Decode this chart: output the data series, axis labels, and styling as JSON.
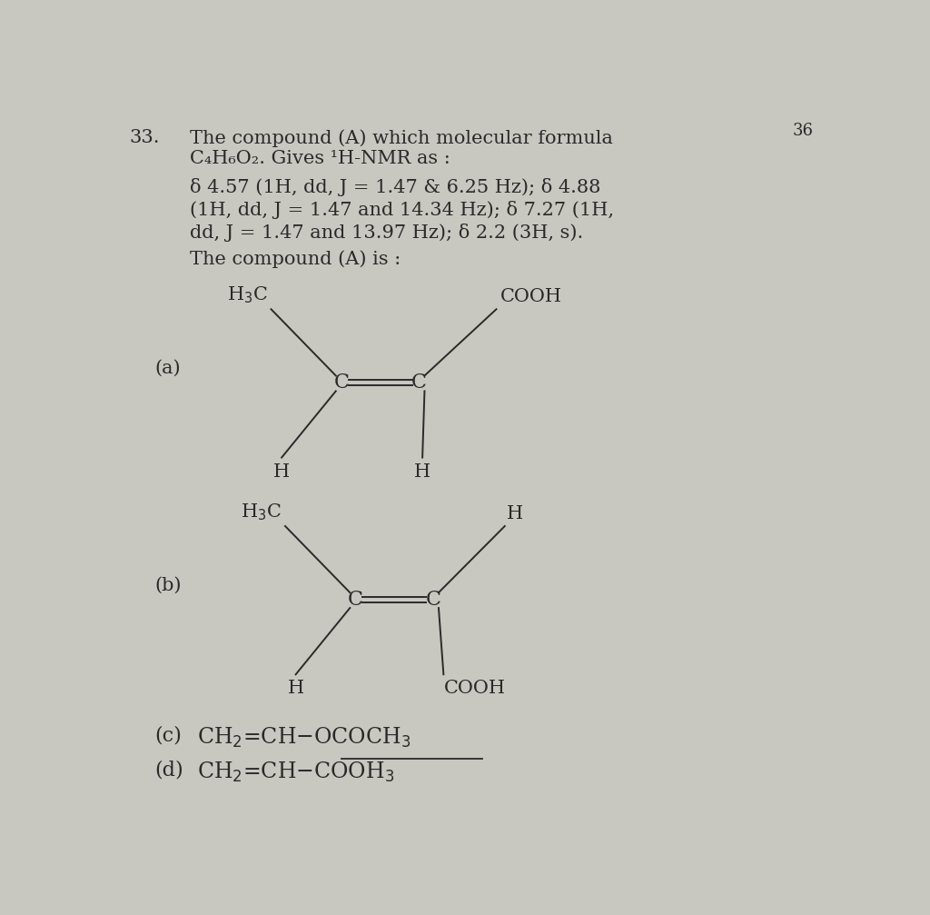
{
  "background_color": "#c8c7c0",
  "question_number": "33.",
  "title_line1": "The compound (A) which molecular formula",
  "title_line2": "C₄H₆O₂. Gives ¹H-NMR as :",
  "nmr_line1": "δ 4.57 (1H, dd, J = 1.47 & 6.25 Hz); δ 4.88",
  "nmr_line2": "(1H, dd, J = 1.47 and 14.34 Hz); δ 7.27 (1H,",
  "nmr_line3": "dd, J = 1.47 and 13.97 Hz); δ 2.2 (3H, s).",
  "compound_line": "The compound (A) is :",
  "option_c_label": "(c)",
  "option_c_formula": "CH₂=CH–OCOCH₃",
  "option_d_label": "(d)",
  "option_d_formula": "CH₂=CH–COOH₃",
  "font_size_main": 15,
  "text_color": "#2a2a2a",
  "page_number": "36",
  "struct_a_label": "(a)",
  "struct_b_label": "(b)"
}
